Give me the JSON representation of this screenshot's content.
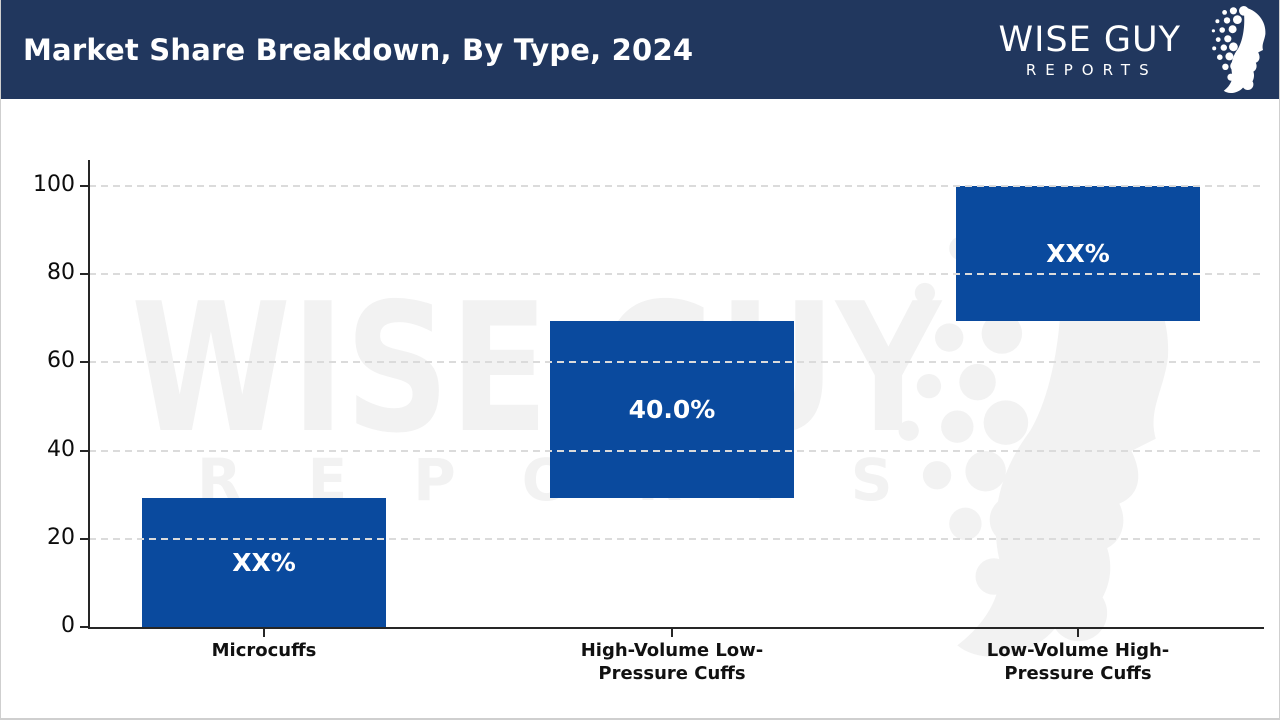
{
  "header": {
    "title": "Market Share Breakdown, By Type, 2024",
    "bg_color": "#21375E",
    "text_color": "#FFFFFF",
    "logo": {
      "line1": "WISE GUY",
      "line2": "REPORTS"
    }
  },
  "watermark": {
    "line1": "WISE GUY",
    "line2": "REPORTS"
  },
  "chart_data": {
    "type": "bar",
    "subtype": "waterfall",
    "title": "Market Share Breakdown, By Type, 2024",
    "categories": [
      "Microcuffs",
      "High-Volume Low-\nPressure Cuffs",
      "Low-Volume High-\nPressure Cuffs"
    ],
    "segments": [
      {
        "category": "Microcuffs",
        "start": 0,
        "end": 29.3,
        "label": "XX%"
      },
      {
        "category": "High-Volume Low-Pressure Cuffs",
        "start": 29.3,
        "end": 69.3,
        "label": "40.0%"
      },
      {
        "category": "Low-Volume High-Pressure Cuffs",
        "start": 69.3,
        "end": 100,
        "label": "XX%"
      }
    ],
    "xlabel": "",
    "ylabel": "",
    "ylim": [
      0,
      100
    ],
    "yticks": [
      0,
      20,
      40,
      60,
      80,
      100
    ],
    "grid": "horizontal-dashed",
    "legend": "none",
    "bar_color": "#0A4A9E",
    "bar_label_color": "#FFFFFF",
    "gridline_color": "#DBDBDB",
    "axis_color": "#262626"
  }
}
